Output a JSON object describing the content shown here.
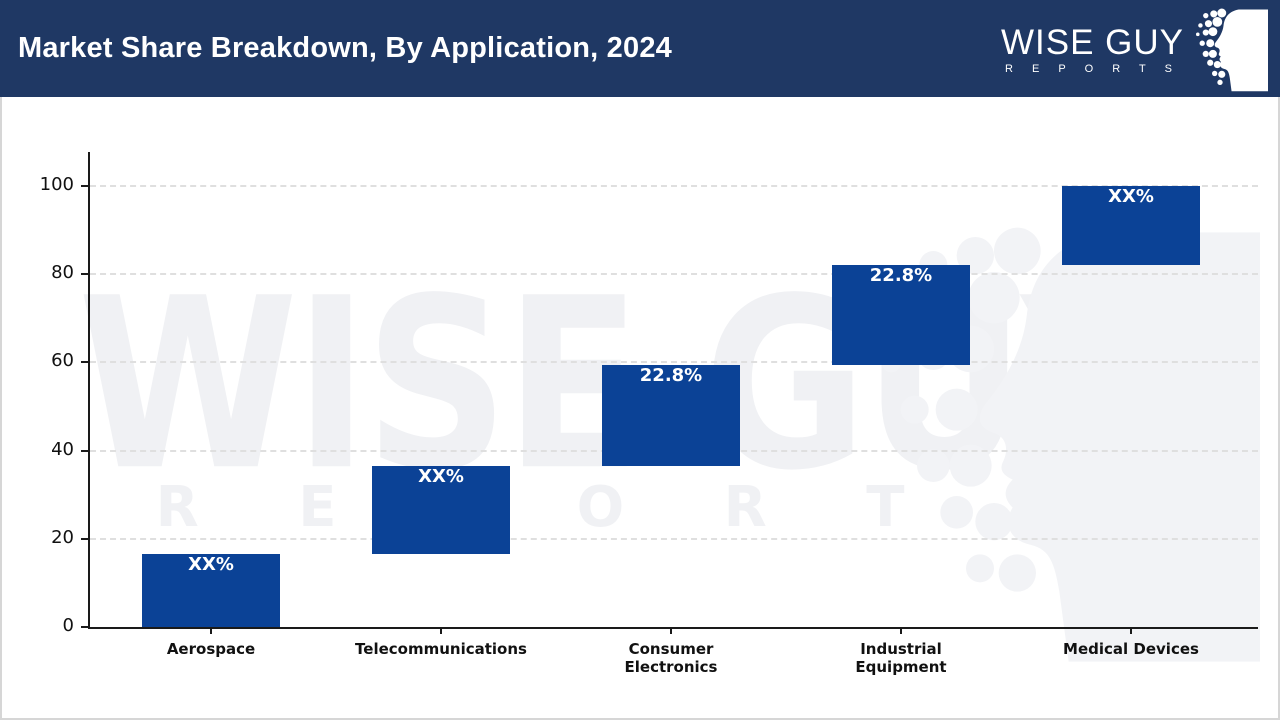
{
  "header": {
    "title": "Market Share Breakdown, By Application, 2024",
    "logo": {
      "line1": "WISE GUY",
      "line2": "R E P O R T S"
    }
  },
  "watermark": {
    "line1": "WISE GUY",
    "line2": "R E P O R T S"
  },
  "chart_data": {
    "type": "bar",
    "subtype": "waterfall",
    "title": "Market Share Breakdown, By Application, 2024",
    "categories": [
      "Aerospace",
      "Telecommunications",
      "Consumer\nElectronics",
      "Industrial\nEquipment",
      "Medical Devices"
    ],
    "segments": [
      {
        "start": 0,
        "end": 16.5,
        "label": "XX%"
      },
      {
        "start": 16.5,
        "end": 36.5,
        "label": "XX%"
      },
      {
        "start": 36.5,
        "end": 59.3,
        "label": "22.8%"
      },
      {
        "start": 59.3,
        "end": 82.1,
        "label": "22.8%"
      },
      {
        "start": 82.1,
        "end": 100,
        "label": "XX%"
      }
    ],
    "xlabel": "",
    "ylabel": "",
    "ylim": [
      0,
      100
    ],
    "yticks": [
      0,
      20,
      40,
      60,
      80,
      100
    ],
    "grid": "horizontal-dashed",
    "legend": "none",
    "colors": {
      "bar": "#0B4296",
      "bar_label": "#FFFFFF",
      "axis": "#1A1A1A",
      "tick_label": "#111111",
      "gridline": "#DFDFDF",
      "header_bg": "#1F3864",
      "watermark": "#F0F1F4"
    }
  }
}
